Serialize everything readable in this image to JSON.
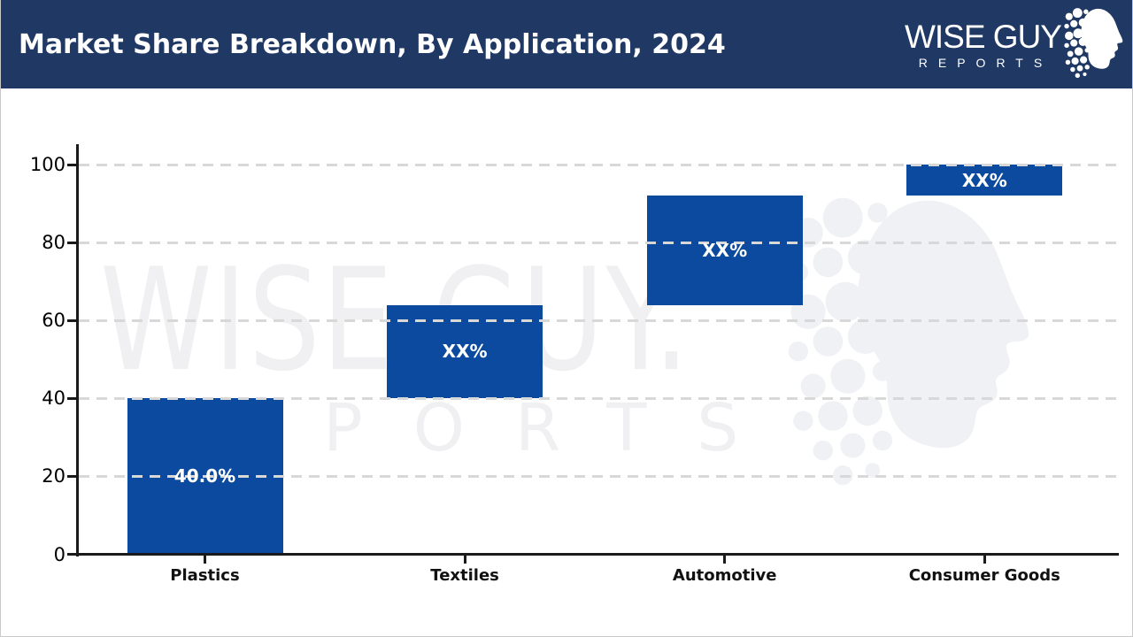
{
  "header": {
    "title": "Market Share Breakdown, By Application, 2024",
    "logo": {
      "line1": "WISE GUY",
      "line2": "REPORTS",
      "head_icon": "dotted-face-profile"
    },
    "bg_color": "#1f3864"
  },
  "watermark": {
    "line1": "WISE GUY.",
    "line2": "REPORTS",
    "head_icon": "dotted-face-profile"
  },
  "chart_data": {
    "type": "bar",
    "subtype": "waterfall",
    "title": "Market Share Breakdown, By Application, 2024",
    "categories": [
      "Plastics",
      "Textiles",
      "Automotive",
      "Consumer Goods"
    ],
    "segments": [
      {
        "category": "Plastics",
        "start": 0,
        "end": 40,
        "label": "40.0%"
      },
      {
        "category": "Textiles",
        "start": 40,
        "end": 64,
        "label": "XX%"
      },
      {
        "category": "Automotive",
        "start": 64,
        "end": 92,
        "label": "XX%"
      },
      {
        "category": "Consumer Goods",
        "start": 92,
        "end": 100,
        "label": "XX%"
      }
    ],
    "xlabel": "",
    "ylabel": "",
    "ylim": [
      0,
      100
    ],
    "y_ticks": [
      0,
      20,
      40,
      60,
      80,
      100
    ],
    "grid": "horizontal-dashed",
    "legend": "none",
    "colors": {
      "bar": "#0b4a9e",
      "bar_label_text": "#ffffff",
      "grid": "#d8d8d8",
      "axis": "#1a1a1a",
      "tick_text": "#000000",
      "header_bg": "#1f3864",
      "watermark": "#f0f0f2"
    }
  }
}
